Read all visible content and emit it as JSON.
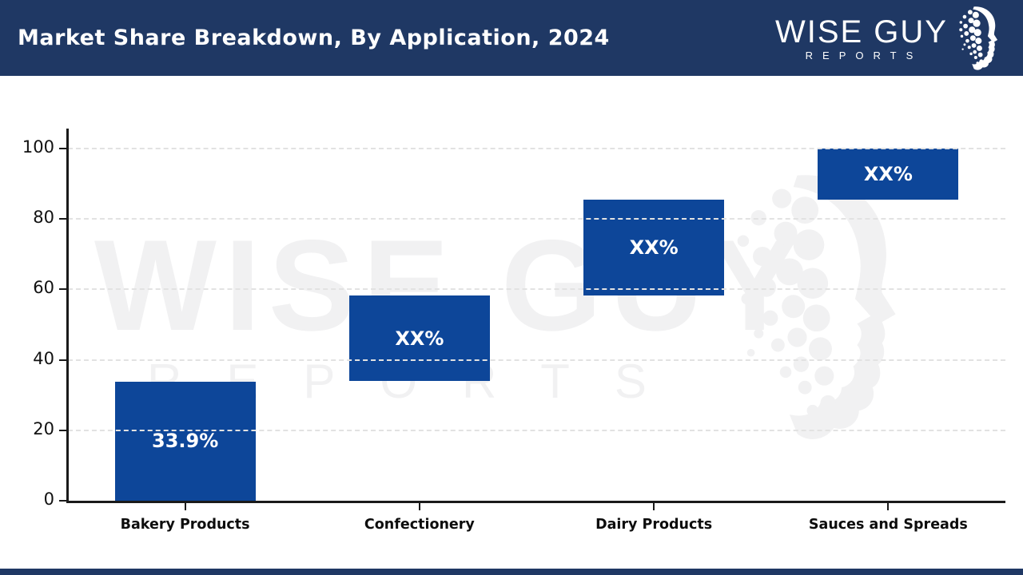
{
  "header": {
    "title": "Market Share Breakdown, By Application, 2024"
  },
  "logo": {
    "name": "WISE GUY",
    "sub": "REPORTS"
  },
  "watermark": {
    "line1": "WISE GUY",
    "line2": "REPORTS"
  },
  "chart_data": {
    "type": "bar",
    "subtype": "waterfall",
    "title": "Market Share Breakdown, By Application, 2024",
    "categories": [
      "Bakery Products",
      "Confectionery",
      "Dairy Products",
      "Sauces and Spreads"
    ],
    "series": [
      {
        "name": "Market Share",
        "segments": [
          {
            "category": "Bakery Products",
            "start": 0,
            "end": 33.9,
            "label": "33.9%"
          },
          {
            "category": "Confectionery",
            "start": 33.9,
            "end": 58.2,
            "label": "XX%"
          },
          {
            "category": "Dairy Products",
            "start": 58.2,
            "end": 85.5,
            "label": "XX%"
          },
          {
            "category": "Sauces and Spreads",
            "start": 85.5,
            "end": 100,
            "label": "XX%"
          }
        ]
      }
    ],
    "xlabel": "",
    "ylabel": "",
    "ylim": [
      0,
      100
    ],
    "yticks": [
      0,
      20,
      40,
      60,
      80,
      100
    ],
    "grid": "horizontal-dashed",
    "legend": "none",
    "bar_color": "#0d4699",
    "label_color": "#ffffff",
    "axis_color": "#1a1a1a",
    "grid_color": "#e2e2e2"
  }
}
